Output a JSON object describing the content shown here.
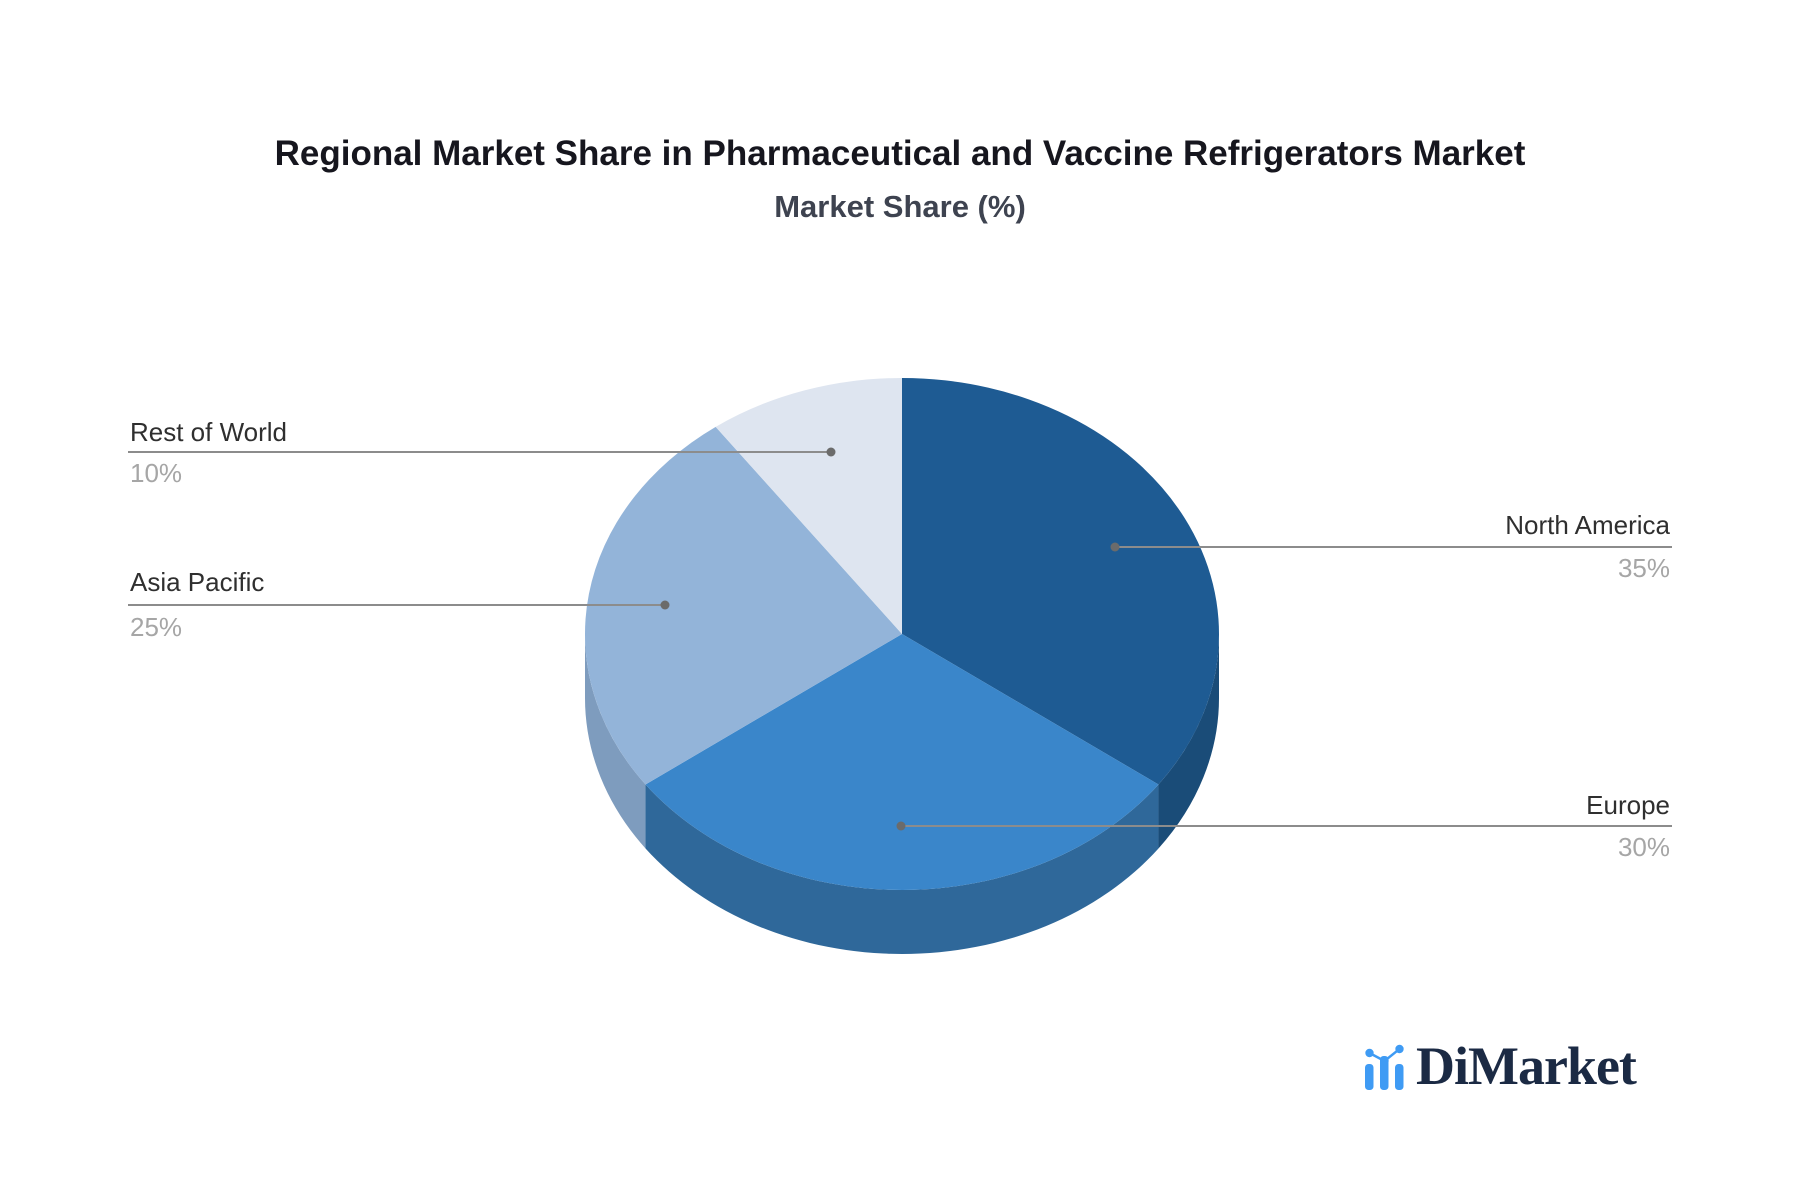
{
  "chart_data": {
    "type": "pie",
    "style": "3d",
    "title": "Regional Market Share in Pharmaceutical and Vaccine Refrigerators Market",
    "subtitle": "Market Share (%)",
    "unit": "%",
    "start_angle_deg": 0,
    "direction": "clockwise",
    "background": "#ffffff",
    "slices": [
      {
        "name": "North America",
        "value": 35,
        "pct_label": "35%",
        "color": "#1e5b93",
        "side_color": "#1a4c78",
        "label_side": "right"
      },
      {
        "name": "Europe",
        "value": 30,
        "pct_label": "30%",
        "color": "#3a86ca",
        "side_color": "#2f689a",
        "label_side": "right"
      },
      {
        "name": "Asia Pacific",
        "value": 25,
        "pct_label": "25%",
        "color": "#93b4d9",
        "side_color": "#7e9cbe",
        "label_side": "left"
      },
      {
        "name": "Rest of World",
        "value": 10,
        "pct_label": "10%",
        "color": "#dee5f0",
        "side_color": "#c7d0de",
        "label_side": "left"
      }
    ],
    "leader_line_color": "#8c8c8c",
    "leader_dot_color": "#6b6b6b",
    "label_color": "#2f2f2f",
    "value_color": "#a6a6a6",
    "legend": "none"
  },
  "branding": {
    "logo_text": "DiMarket",
    "logo_icon": "bar-chart-trend-icon",
    "logo_icon_color": "#3f9bf4",
    "logo_text_color": "#1b2a44"
  }
}
